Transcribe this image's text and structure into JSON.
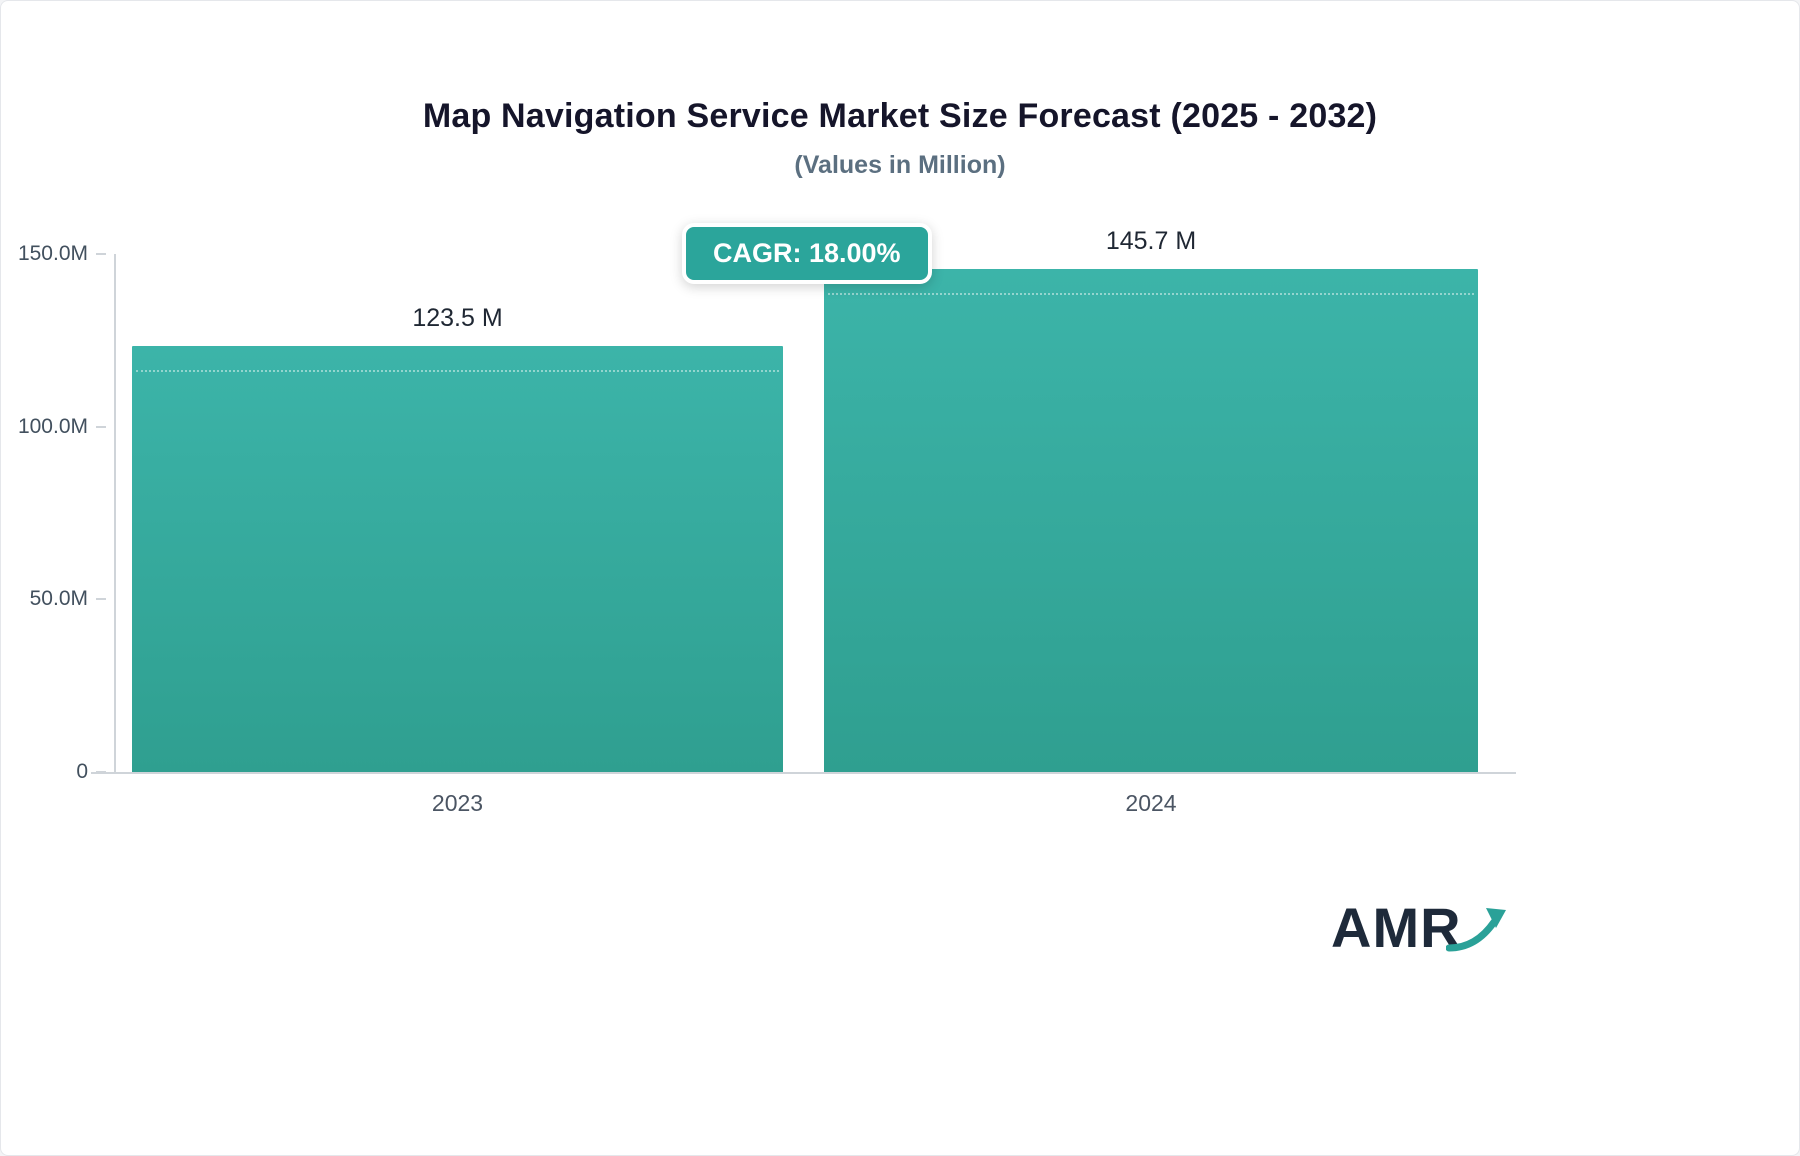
{
  "chart_data": {
    "type": "bar",
    "title": "Map Navigation Service Market Size Forecast (2025 - 2032)",
    "subtitle": "(Values in Million)",
    "categories": [
      "2023",
      "2024"
    ],
    "values": [
      123.5,
      145.7
    ],
    "value_labels": [
      "123.5 M",
      "145.7 M"
    ],
    "unit": "Million",
    "ylim": [
      0,
      150
    ],
    "ytick_labels": [
      "150.0M",
      "100.0M",
      "50.0M",
      "0"
    ],
    "grid": false,
    "legend": "none",
    "bar_color_top": "#3cb4a9",
    "bar_color_bottom": "#2f9f90"
  },
  "badge": {
    "label": "CAGR: 18.00%",
    "bg": "#2ba59b"
  },
  "logo": {
    "text": "AMR",
    "arrow_color": "#2aa198"
  }
}
